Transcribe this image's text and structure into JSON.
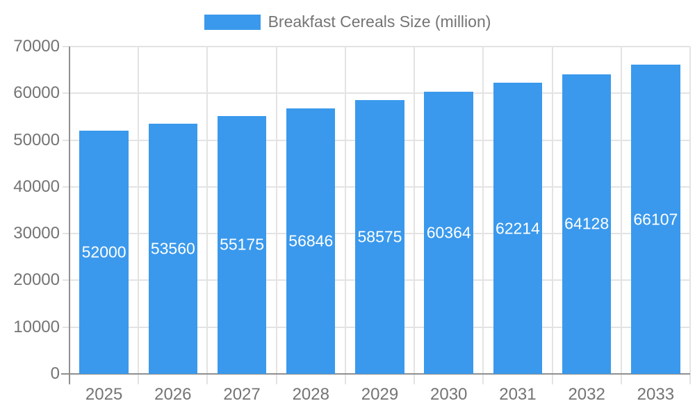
{
  "colors": {
    "bar": "#3A99EC",
    "grid": "#E3E3E3",
    "axis": "#8F8F8F",
    "text": "#747474",
    "value_label": "#FFFFFF",
    "background": "#FFFFFF"
  },
  "legend": {
    "label": "Breakfast Cereals Size (million)"
  },
  "chart_data": {
    "type": "bar",
    "title": "Breakfast Cereals Size (million)",
    "categories": [
      "2025",
      "2026",
      "2027",
      "2028",
      "2029",
      "2030",
      "2031",
      "2032",
      "2033"
    ],
    "values": [
      52000,
      53560,
      55175,
      56846,
      58575,
      60364,
      62214,
      64128,
      66107
    ],
    "xlabel": "",
    "ylabel": "",
    "ylim": [
      0,
      70000
    ],
    "yticks": [
      0,
      10000,
      20000,
      30000,
      40000,
      50000,
      60000,
      70000
    ],
    "grid": true,
    "legend_position": "top-center",
    "value_label_position": "inside-center"
  }
}
